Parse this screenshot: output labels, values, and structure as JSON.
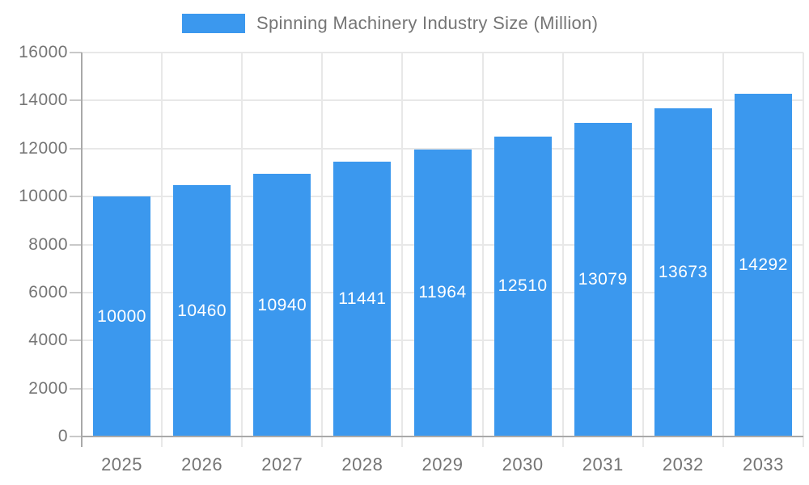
{
  "legend": {
    "label": "Spinning Machinery Industry Size (Million)"
  },
  "chart_data": {
    "type": "bar",
    "title": "Spinning Machinery Industry Size (Million)",
    "categories": [
      "2025",
      "2026",
      "2027",
      "2028",
      "2029",
      "2030",
      "2031",
      "2032",
      "2033"
    ],
    "values": [
      10000,
      10460,
      10940,
      11441,
      11964,
      12510,
      13079,
      13673,
      14292
    ],
    "bar_value_labels": [
      "10000",
      "10460",
      "10940",
      "11441",
      "11964",
      "12510",
      "13079",
      "13673",
      "14292"
    ],
    "xlabel": "",
    "ylabel": "",
    "ylim": [
      0,
      16000
    ],
    "yticks": [
      0,
      2000,
      4000,
      6000,
      8000,
      10000,
      12000,
      14000,
      16000
    ],
    "ytick_labels": [
      "0",
      "2000",
      "4000",
      "6000",
      "8000",
      "10000",
      "12000",
      "14000",
      "16000"
    ],
    "grid": true,
    "legend_position": "top",
    "value_labels": "centered-inside-bars"
  },
  "colors": {
    "bar": "#3b98ee",
    "bar_label": "#ffffff",
    "axis_text": "#757575",
    "grid": "#e8e8e8",
    "axis_line": "#a9a9a9",
    "tick": "#c9c9c9",
    "background": "#ffffff"
  }
}
